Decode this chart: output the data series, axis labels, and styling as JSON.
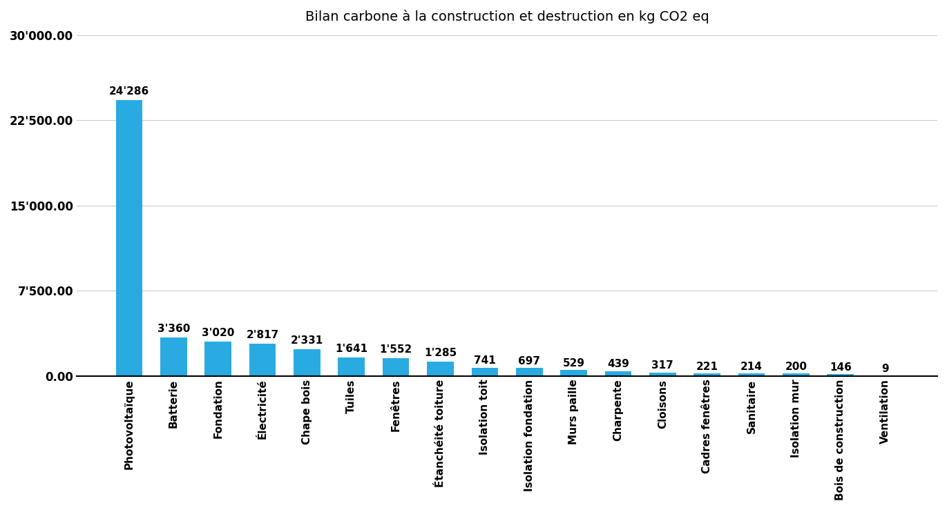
{
  "title": "Bilan carbone à la construction et destruction en kg CO2 eq",
  "categories": [
    "Photovoltaïque",
    "Batterie",
    "Fondation",
    "Électricité",
    "Chape bois",
    "Tuiles",
    "Fenêtres",
    "Étanchéité toiture",
    "Isolation toit",
    "Isolation fondation",
    "Murs paille",
    "Charpente",
    "Cloisons",
    "Cadres fenêtres",
    "Sanitaire",
    "Isolation mur",
    "Bois de construction",
    "Ventilation"
  ],
  "values": [
    24286,
    3360,
    3020,
    2817,
    2331,
    1641,
    1552,
    1285,
    741,
    697,
    529,
    439,
    317,
    221,
    214,
    200,
    146,
    9
  ],
  "labels": [
    "24'286",
    "3'360",
    "3'020",
    "2'817",
    "2'331",
    "1'641",
    "1'552",
    "1'285",
    "741",
    "697",
    "529",
    "439",
    "317",
    "221",
    "214",
    "200",
    "146",
    "9"
  ],
  "bar_color": "#29ABE2",
  "background_color": "#ffffff",
  "ylim": [
    0,
    30000
  ],
  "yticks": [
    0,
    7500,
    15000,
    22500,
    30000
  ],
  "ytick_labels": [
    "0.00",
    "7'500.00",
    "15'000.00",
    "22'500.00",
    "30'000.00"
  ],
  "title_fontsize": 14,
  "bar_label_fontsize": 11,
  "tick_label_fontsize": 11,
  "ytick_fontsize": 12
}
